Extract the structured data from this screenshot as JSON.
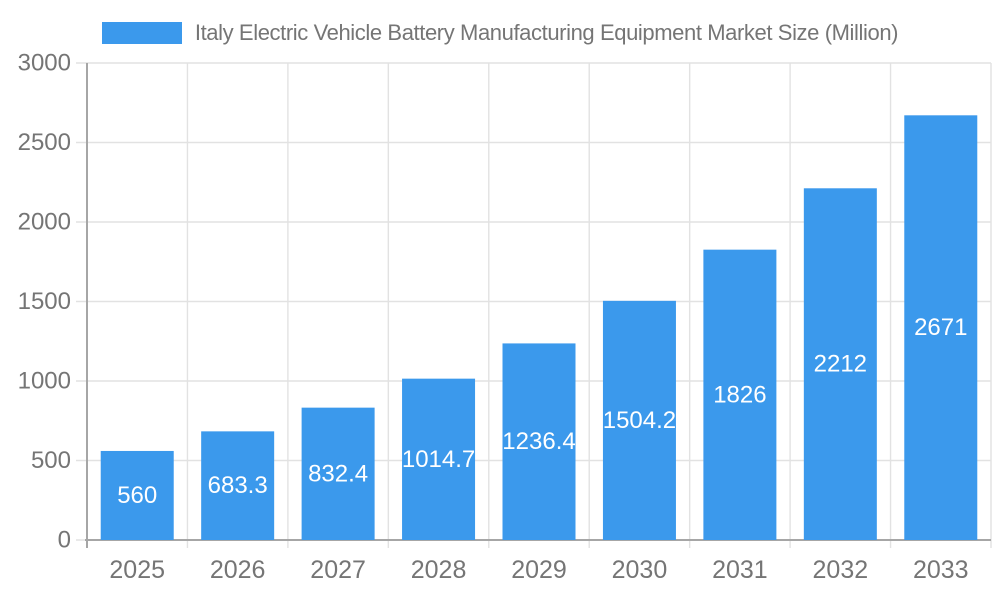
{
  "chart_data": {
    "type": "bar",
    "title": "Italy Electric Vehicle Battery Manufacturing Equipment Market Size (Million)",
    "categories": [
      "2025",
      "2026",
      "2027",
      "2028",
      "2029",
      "2030",
      "2031",
      "2032",
      "2033"
    ],
    "values": [
      560,
      683.3,
      832.4,
      1014.7,
      1236.4,
      1504.2,
      1826,
      2212,
      2671
    ],
    "xlabel": "",
    "ylabel": "",
    "ylim": [
      0,
      3000
    ],
    "ytick_step": 500,
    "yticks": [
      0,
      500,
      1000,
      1500,
      2000,
      2500,
      3000
    ],
    "grid": true,
    "legend_position": "top",
    "value_labels": "inside-center",
    "colors": {
      "bar": "#3B99EC",
      "value_label": "#FFFFFF",
      "axis_text": "#757575",
      "grid_line": "#E2E2E2",
      "axis_line": "#A6A6A6",
      "background": "#FFFFFF"
    }
  }
}
